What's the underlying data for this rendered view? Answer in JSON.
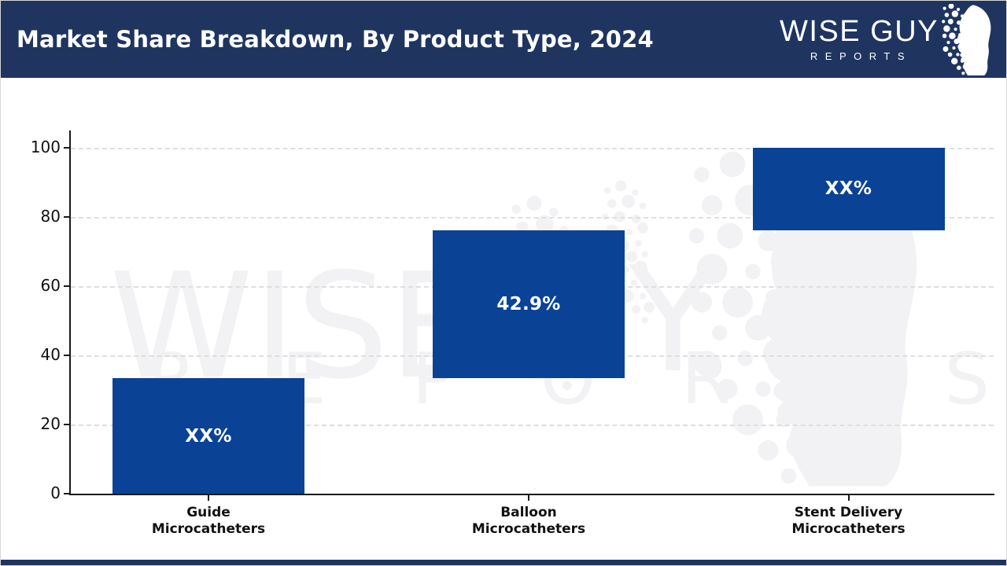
{
  "page": {
    "accent_navy": "#1f3560",
    "background": "#ffffff",
    "frame_border": "#d8d8d8"
  },
  "header": {
    "title": "Market Share Breakdown, By Product Type, 2024",
    "logo": {
      "line1": "WISE GUY",
      "line2": "REPORTS"
    }
  },
  "watermark": {
    "word_wise": "WISE",
    "word_g": "G",
    "word_y": "Y",
    "reports": "R E P O R T S"
  },
  "chart_data": {
    "type": "bar",
    "subtype": "floating-segment-bars (waterfall-style market share breakdown)",
    "title": "Market Share Breakdown, By Product Type, 2024",
    "categories": [
      "Guide Microcatheters",
      "Balloon Microcatheters",
      "Stent Delivery Microcatheters"
    ],
    "category_lines": [
      [
        "Guide",
        "Microcatheters"
      ],
      [
        "Balloon",
        "Microcatheters"
      ],
      [
        "Stent Delivery",
        "Microcatheters"
      ]
    ],
    "segments": [
      {
        "name": "Guide Microcatheters",
        "start": 0,
        "end": 33.3,
        "height": 33.3,
        "label": "XX%"
      },
      {
        "name": "Balloon Microcatheters",
        "start": 33.3,
        "end": 76.2,
        "height": 42.9,
        "label": "42.9%"
      },
      {
        "name": "Stent Delivery Microcatheters",
        "start": 76.2,
        "end": 100,
        "height": 23.8,
        "label": "XX%"
      }
    ],
    "xlabel": "",
    "ylabel": "",
    "ylim": [
      0,
      100
    ],
    "yticks": [
      0,
      20,
      40,
      60,
      80,
      100
    ],
    "grid": "horizontal-dashed",
    "legend": "none",
    "bar_color": "#0a4296",
    "bar_label_color": "#ffffff",
    "axis_color": "#1a1a1a",
    "gridline_color": "#dedede",
    "watermark_color": "#f2f2f4"
  }
}
